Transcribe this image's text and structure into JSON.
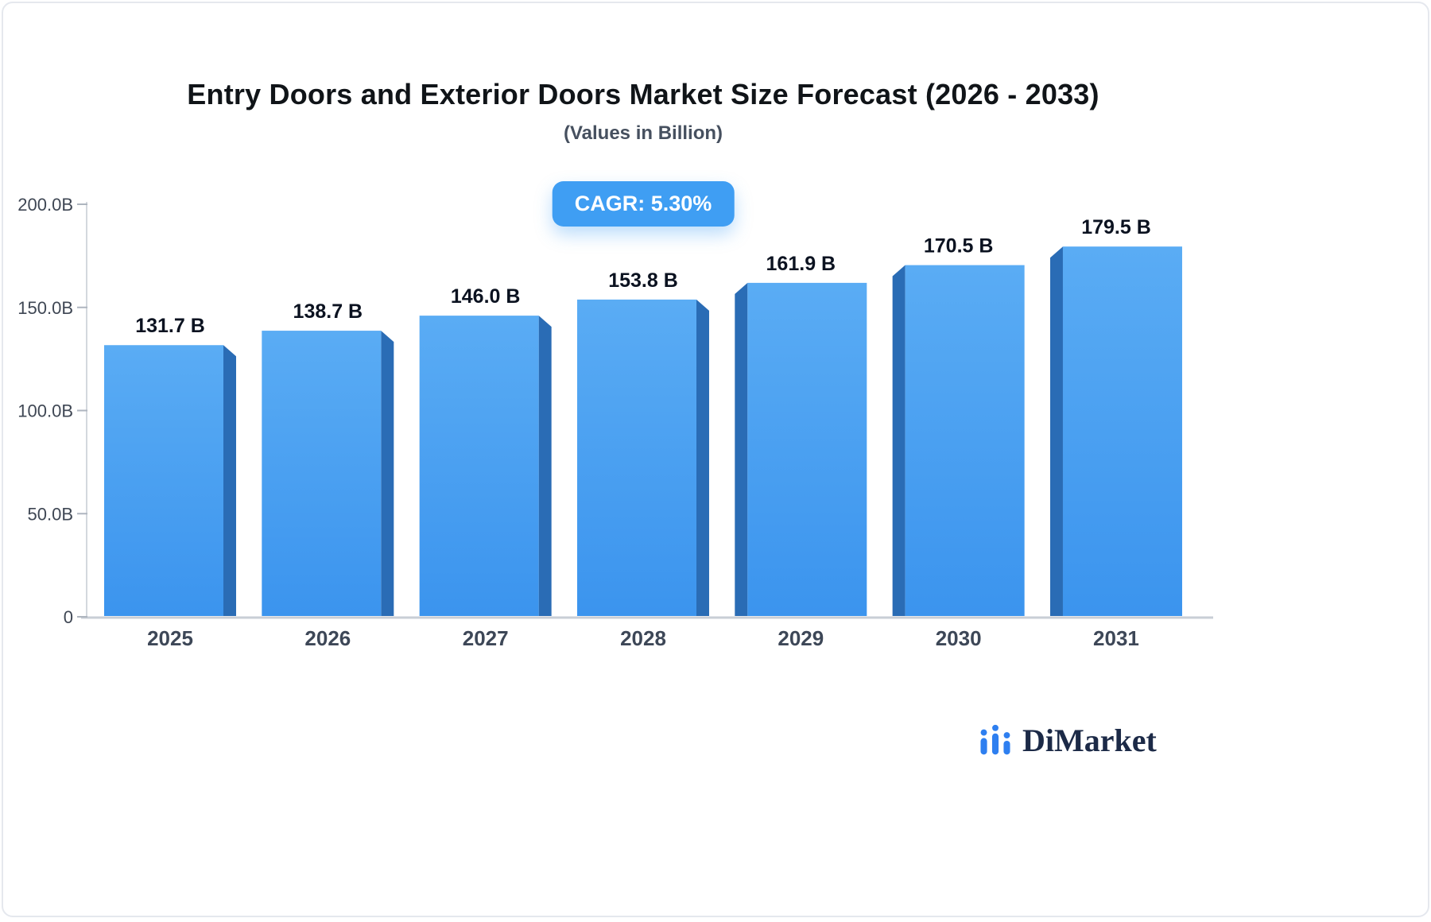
{
  "chart_data": {
    "type": "bar",
    "title": "Entry Doors and Exterior Doors Market Size Forecast (2026 - 2033)",
    "subtitle": "(Values in Billion)",
    "cagr": "CAGR: 5.30%",
    "categories": [
      "2025",
      "2026",
      "2027",
      "2028",
      "2029",
      "2030",
      "2031"
    ],
    "values": [
      131.7,
      138.7,
      146.0,
      153.8,
      161.9,
      170.5,
      179.5
    ],
    "value_labels": [
      "131.7 B",
      "138.7 B",
      "146.0 B",
      "153.8 B",
      "161.9 B",
      "170.5 B",
      "179.5 B"
    ],
    "xlabel": "",
    "ylabel": "",
    "ylim": [
      0,
      200
    ],
    "yticks": [
      0,
      50,
      100,
      150,
      200
    ],
    "ytick_labels": [
      "0",
      "50.0B",
      "100.0B",
      "150.0B",
      "200.0B"
    ],
    "grid": false,
    "legend": false,
    "bar_color_top": "#5aacf4",
    "bar_color_bottom": "#3b94ee",
    "bar_side_color": "#2a6cb5",
    "badge_color": "#3f9ef3",
    "axis_color": "#c9ced6",
    "tick_label_color": "#3f4754",
    "value_label_color": "#0b1220",
    "category_label_color": "#3d4757"
  },
  "logo": {
    "text": "DiMarket",
    "icon": "bar-chart-logo-icon",
    "icon_color": "#2e7ff0",
    "text_color": "#1c2a47"
  }
}
